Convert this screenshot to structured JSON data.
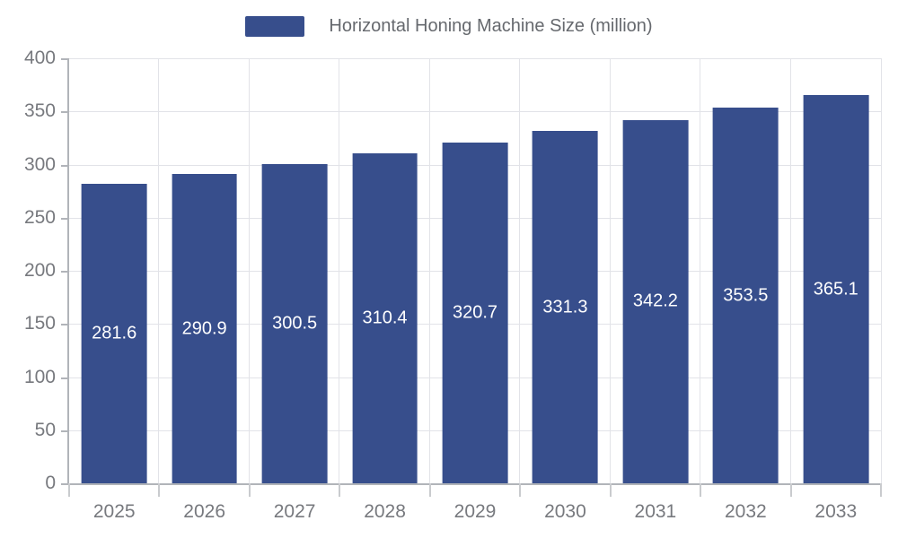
{
  "legend": {
    "label": "Horizontal Honing Machine Size (million)"
  },
  "chart_data": {
    "type": "bar",
    "title": "",
    "categories": [
      "2025",
      "2026",
      "2027",
      "2028",
      "2029",
      "2030",
      "2031",
      "2032",
      "2033"
    ],
    "series": [
      {
        "name": "Horizontal Honing Machine Size (million)",
        "values": [
          281.6,
          290.9,
          300.5,
          310.4,
          320.7,
          331.3,
          342.2,
          353.5,
          365.1
        ]
      }
    ],
    "value_labels": [
      "281.6",
      "290.9",
      "300.5",
      "310.4",
      "320.7",
      "331.3",
      "342.2",
      "353.5",
      "365.1"
    ],
    "xlabel": "",
    "ylabel": "",
    "ylim": [
      0,
      400
    ],
    "ytick_step": 50,
    "ytick_labels": [
      "0",
      "50",
      "100",
      "150",
      "200",
      "250",
      "300",
      "350",
      "400"
    ],
    "grid": true,
    "legend_position": "top",
    "colors": {
      "bar": "#374E8C",
      "grid_line": "#e2e3e8",
      "axis_line": "#b1b4b9",
      "tick_label": "#77797e",
      "legend_text": "#66696e",
      "value_label": "#ffffff",
      "background": "#ffffff"
    }
  }
}
